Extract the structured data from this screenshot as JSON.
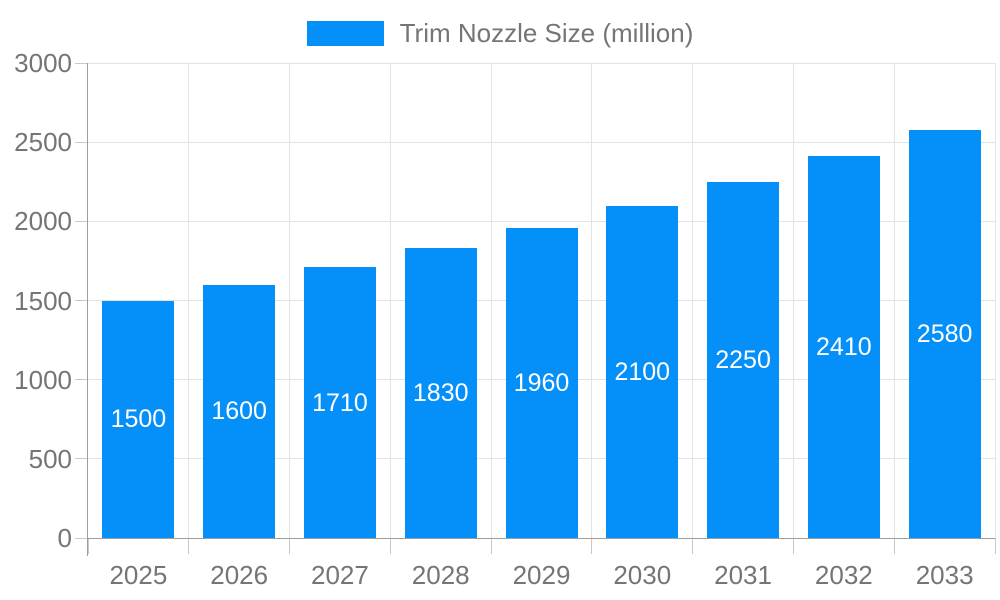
{
  "legend": {
    "label": "Trim Nozzle Size (million)"
  },
  "colors": {
    "bar": "#0590f9",
    "bar_label": "#ffffff",
    "grid": "#e3e3e3",
    "tick": "#c9c9c9",
    "axis_line": "#9e9e9e",
    "axis_text": "#757575",
    "background": "#ffffff"
  },
  "chart_data": {
    "type": "bar",
    "title": "",
    "series_name": "Trim Nozzle Size (million)",
    "legend_entries": [
      "Trim Nozzle Size (million)"
    ],
    "legend_position": "top-center",
    "categories": [
      "2025",
      "2026",
      "2027",
      "2028",
      "2029",
      "2030",
      "2031",
      "2032",
      "2033"
    ],
    "values": [
      1500,
      1600,
      1710,
      1830,
      1960,
      2100,
      2250,
      2410,
      2580
    ],
    "bar_value_labels": [
      "1500",
      "1600",
      "1710",
      "1830",
      "1960",
      "2100",
      "2250",
      "2410",
      "2580"
    ],
    "bar_value_labels_visible": true,
    "bar_value_label_position": "center-of-bar",
    "xlabel": "",
    "ylabel": "",
    "ylim": [
      0,
      3000
    ],
    "yticks": [
      0,
      500,
      1000,
      1500,
      2000,
      2500,
      3000
    ],
    "grid": true
  }
}
